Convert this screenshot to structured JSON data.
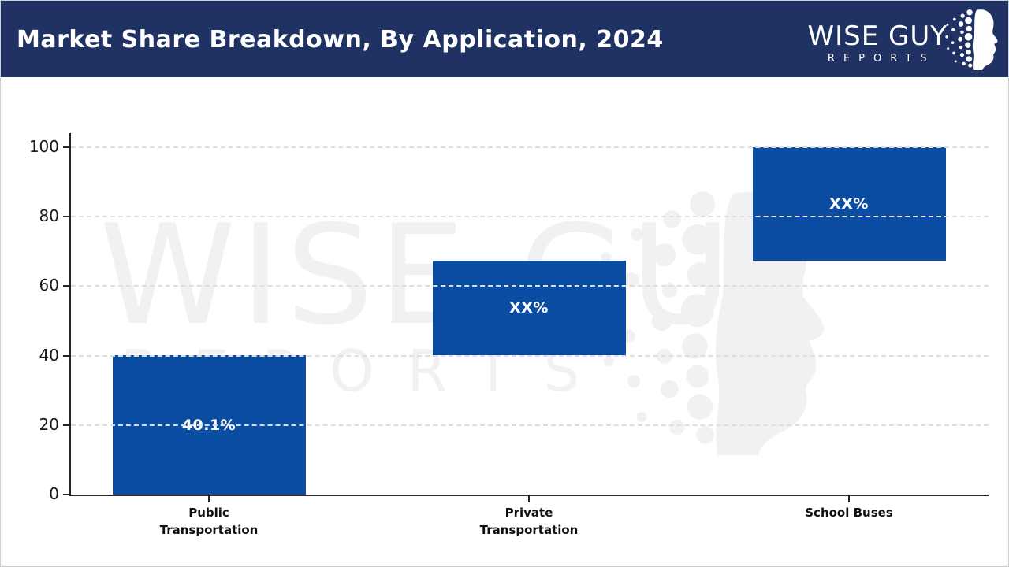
{
  "header": {
    "title": "Market Share Breakdown, By Application, 2024",
    "logo": {
      "line1": "WISE GUY",
      "line2": "REPORTS"
    }
  },
  "watermark": {
    "line1": "WISE GUY",
    "line2": "REPORTS"
  },
  "colors": {
    "header_bg": "#1f3263",
    "bar_blue": "#0b4da2",
    "watermark_gray": "#f1f1f3",
    "gridline": "#dedede",
    "axis": "#262626",
    "bar_value_text": "#ffffff"
  },
  "chart_data": {
    "type": "bar",
    "subtype": "waterfall",
    "title": "Market Share Breakdown, By Application, 2024",
    "categories": [
      "Public Transportation",
      "Private Transportation",
      "School Buses"
    ],
    "segments": [
      {
        "category": "Public Transportation",
        "start": 0,
        "end": 40.1,
        "label": "40.1%"
      },
      {
        "category": "Private Transportation",
        "start": 40.1,
        "end": 67.4,
        "label": "XX%"
      },
      {
        "category": "School Buses",
        "start": 67.4,
        "end": 100,
        "label": "XX%"
      }
    ],
    "xtick_label_lines": [
      [
        "Public",
        "Transportation"
      ],
      [
        "Private",
        "Transportation"
      ],
      [
        "School Buses"
      ]
    ],
    "ylim": [
      0,
      100
    ],
    "yticks": [
      0,
      20,
      40,
      60,
      80,
      100
    ],
    "grid": "horizontal dashed, drawn over bars",
    "legend": "none",
    "bar_color": "#0b4da2"
  }
}
